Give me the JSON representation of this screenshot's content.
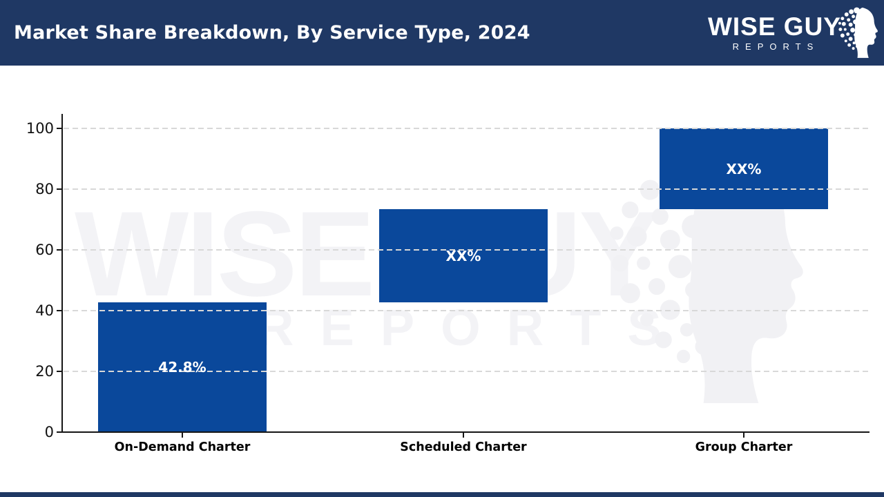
{
  "header": {
    "title": "Market Share Breakdown, By Service Type, 2024",
    "logo": {
      "line1": "WISE GUY",
      "line2": "REPORTS"
    }
  },
  "watermark": {
    "line1": "WISE GUY",
    "line2": "REPORTS"
  },
  "chart_data": {
    "type": "bar",
    "subtype": "waterfall-stacked-percentage",
    "title": "Market Share Breakdown, By Service Type, 2024",
    "categories": [
      "On-Demand Charter",
      "Scheduled Charter",
      "Group Charter"
    ],
    "bars": [
      {
        "category": "On-Demand Charter",
        "start": 0,
        "end": 42.8,
        "label": "42.8%"
      },
      {
        "category": "Scheduled Charter",
        "start": 42.8,
        "end": 73.3,
        "label": "XX%"
      },
      {
        "category": "Group Charter",
        "start": 73.3,
        "end": 100,
        "label": "XX%"
      }
    ],
    "xlabel": "",
    "ylabel": "",
    "y_ticks": [
      0,
      20,
      40,
      60,
      80,
      100
    ],
    "ylim": [
      0,
      105
    ],
    "grid": "horizontal-dashed",
    "legend": "none"
  },
  "colors": {
    "header_bg": "#1f3864",
    "footer_bg": "#1f3864",
    "bar": "#0a489b",
    "bar_label": "#ffffff",
    "grid": "#d8d8d8",
    "axis": "#151515",
    "watermark": "#f3f3f6"
  }
}
